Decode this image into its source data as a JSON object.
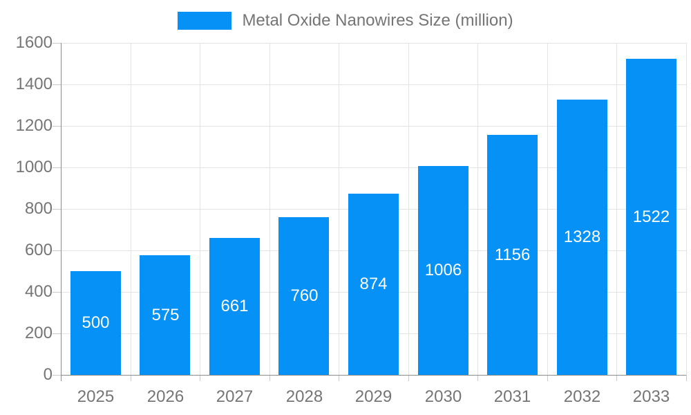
{
  "legend": {
    "label": "Metal Oxide Nanowires Size (million)"
  },
  "chart_data": {
    "type": "bar",
    "title": "",
    "xlabel": "",
    "ylabel": "",
    "categories": [
      "2025",
      "2026",
      "2027",
      "2028",
      "2029",
      "2030",
      "2031",
      "2032",
      "2033"
    ],
    "series": [
      {
        "name": "Metal Oxide Nanowires Size (million)",
        "values": [
          500,
          575,
          661,
          760,
          874,
          1006,
          1156,
          1328,
          1522
        ]
      }
    ],
    "value_labels": [
      "500",
      "575",
      "661",
      "760",
      "874",
      "1006",
      "1156",
      "1328",
      "1522"
    ],
    "ylim": [
      0,
      1600
    ],
    "yticks": [
      0,
      200,
      400,
      600,
      800,
      1000,
      1200,
      1400,
      1600
    ],
    "grid": true,
    "legend_position": "top-center",
    "colors": {
      "bar": "#0591F5",
      "value_label_text": "#FFFFFF",
      "axis_text": "#757575",
      "gridline": "#E4E4E4",
      "axis_line": "#8C8C8C",
      "tick": "#C9C9C9",
      "background": "#FFFFFF"
    }
  }
}
